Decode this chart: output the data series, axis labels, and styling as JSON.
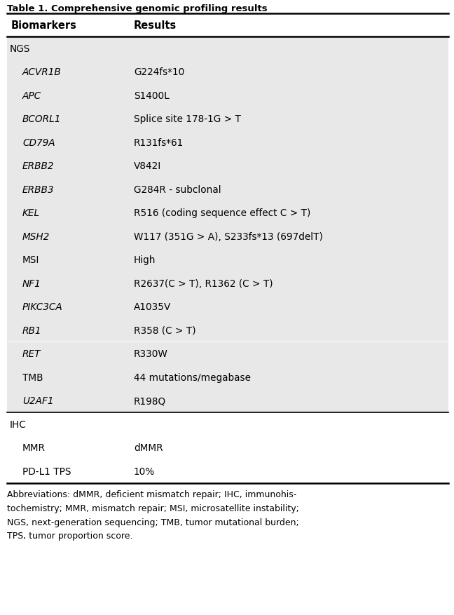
{
  "title": "Table 1. Comprehensive genomic profiling results",
  "col1_header": "Biomarkers",
  "col2_header": "Results",
  "bg_color": "#e8e8e8",
  "white_bg": "#ffffff",
  "rows": [
    {
      "biomarker": "NGS",
      "result": "",
      "italic": false,
      "indent": false,
      "section": "ngs_header",
      "row_bg": "#e8e8e8"
    },
    {
      "biomarker": "ACVR1B",
      "result": "G224fs*10",
      "italic": true,
      "indent": true,
      "section": "ngs",
      "row_bg": "#e8e8e8"
    },
    {
      "biomarker": "APC",
      "result": "S1400L",
      "italic": true,
      "indent": true,
      "section": "ngs",
      "row_bg": "#e8e8e8"
    },
    {
      "biomarker": "BCORL1",
      "result": "Splice site 178-1G > T",
      "italic": true,
      "indent": true,
      "section": "ngs",
      "row_bg": "#e8e8e8"
    },
    {
      "biomarker": "CD79A",
      "result": "R131fs*61",
      "italic": true,
      "indent": true,
      "section": "ngs",
      "row_bg": "#e8e8e8"
    },
    {
      "biomarker": "ERBB2",
      "result": "V842I",
      "italic": true,
      "indent": true,
      "section": "ngs",
      "row_bg": "#e8e8e8"
    },
    {
      "biomarker": "ERBB3",
      "result": "G284R - subclonal",
      "italic": true,
      "indent": true,
      "section": "ngs",
      "row_bg": "#e8e8e8"
    },
    {
      "biomarker": "KEL",
      "result": "R516 (coding sequence effect C > T)",
      "italic": true,
      "indent": true,
      "section": "ngs",
      "row_bg": "#e8e8e8"
    },
    {
      "biomarker": "MSH2",
      "result": "W117 (351G > A), S233fs*13 (697delT)",
      "italic": true,
      "indent": true,
      "section": "ngs",
      "row_bg": "#e8e8e8"
    },
    {
      "biomarker": "MSI",
      "result": "High",
      "italic": false,
      "indent": true,
      "section": "ngs",
      "row_bg": "#e8e8e8"
    },
    {
      "biomarker": "NF1",
      "result": "R2637(C > T), R1362 (C > T)",
      "italic": true,
      "indent": true,
      "section": "ngs",
      "row_bg": "#e8e8e8"
    },
    {
      "biomarker": "PIKC3CA",
      "result": "A1035V",
      "italic": true,
      "indent": true,
      "section": "ngs",
      "row_bg": "#e8e8e8"
    },
    {
      "biomarker": "RB1",
      "result": "R358 (C > T)",
      "italic": true,
      "indent": true,
      "section": "ngs",
      "row_bg": "#e8e8e8"
    },
    {
      "biomarker": "RET",
      "result": "R330W",
      "italic": true,
      "indent": true,
      "section": "ngs",
      "row_bg": "#e8e8e8"
    },
    {
      "biomarker": "TMB",
      "result": "44 mutations/megabase",
      "italic": false,
      "indent": true,
      "section": "ngs",
      "row_bg": "#e8e8e8"
    },
    {
      "biomarker": "U2AF1",
      "result": "R198Q",
      "italic": true,
      "indent": true,
      "section": "ngs",
      "row_bg": "#e8e8e8"
    },
    {
      "biomarker": "IHC",
      "result": "",
      "italic": false,
      "indent": false,
      "section": "ihc_header",
      "row_bg": "#ffffff"
    },
    {
      "biomarker": "MMR",
      "result": "dMMR",
      "italic": false,
      "indent": true,
      "section": "ihc",
      "row_bg": "#ffffff"
    },
    {
      "biomarker": "PD-L1 TPS",
      "result": "10%",
      "italic": false,
      "indent": true,
      "section": "ihc",
      "row_bg": "#ffffff"
    }
  ],
  "footnote_lines": [
    "Abbreviations: dMMR, deficient mismatch repair; IHC, immunohis-",
    "tochemistry; MMR, mismatch repair; MSI, microsatellite instability;",
    "NGS, next-generation sequencing; TMB, tumor mutational burden;",
    "TPS, tumor proportion score."
  ],
  "fig_width": 6.48,
  "fig_height": 8.78,
  "dpi": 100
}
